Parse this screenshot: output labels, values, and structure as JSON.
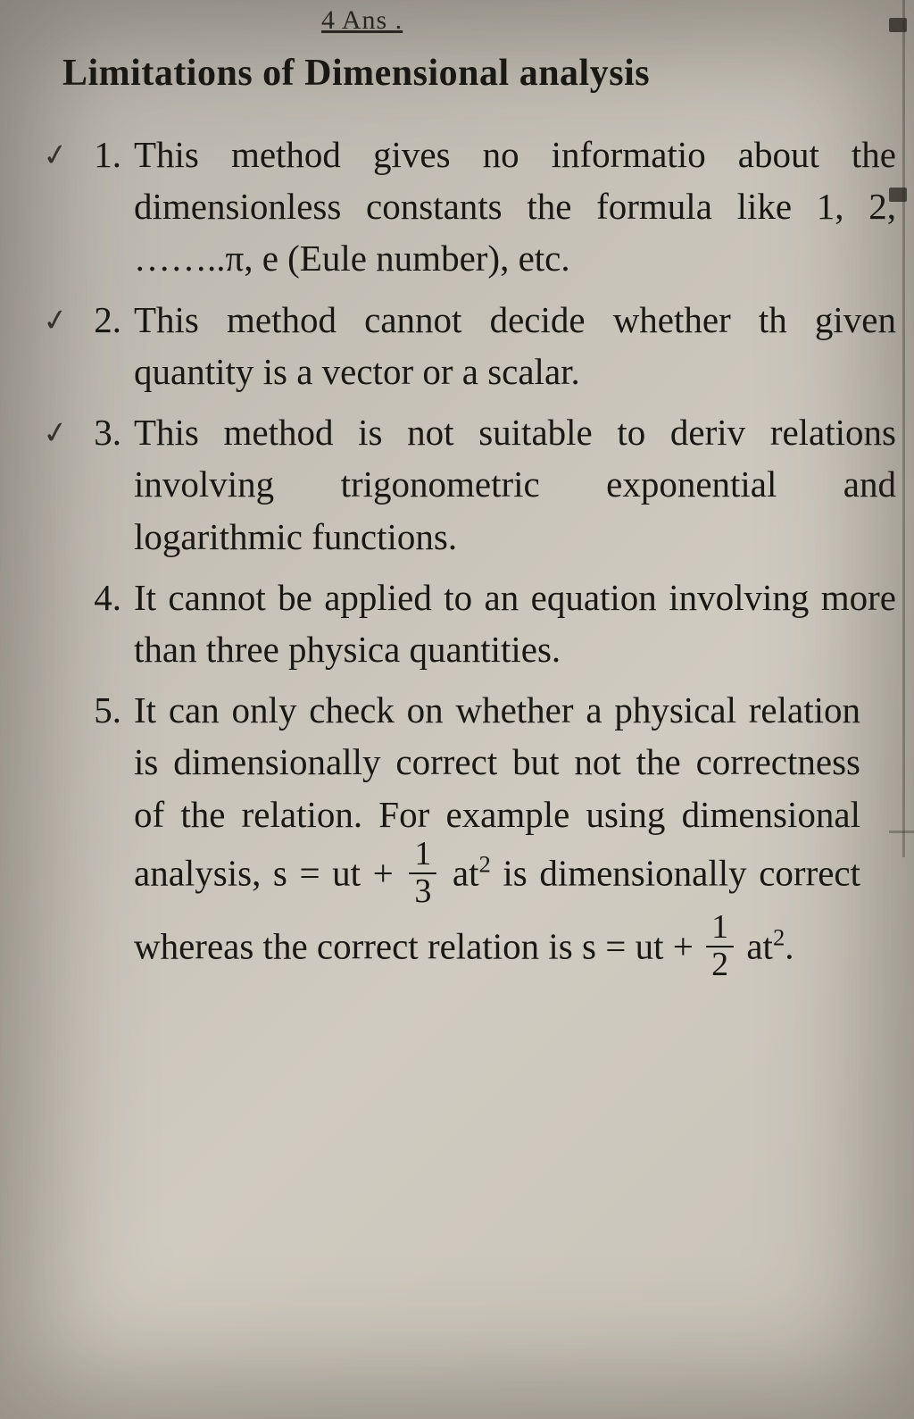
{
  "annotation": "4 Ans .",
  "title": "Limitations of Dimensional analysis",
  "items": [
    {
      "num": "1.",
      "checked": true,
      "text": "This method gives no informatio about the dimensionless constants the formula like 1, 2, ……..π, e (Eule number), etc."
    },
    {
      "num": "2.",
      "checked": true,
      "text": "This method cannot decide whether th given quantity is a vector or a scalar."
    },
    {
      "num": "3.",
      "checked": true,
      "text": "This method is not suitable to deriv relations involving trigonometric exponential and logarithmic functions."
    },
    {
      "num": "4.",
      "checked": false,
      "text": "It cannot be applied to an equation involving more than three physica quantities."
    },
    {
      "num": "5.",
      "checked": false,
      "pre": "It can only check on whether a physical relation is dimensionally correct but not the correctness of the relation. For example using dimensional analysis, s = ut + ",
      "frac1_n": "1",
      "frac1_d": "3",
      "mid": " at",
      "exp1": "2",
      "mid2": " is dimensionally correct whereas the correct relation is s = ut + ",
      "frac2_n": "1",
      "frac2_d": "2",
      "post": " at",
      "exp2": "2",
      "end": "."
    }
  ]
}
